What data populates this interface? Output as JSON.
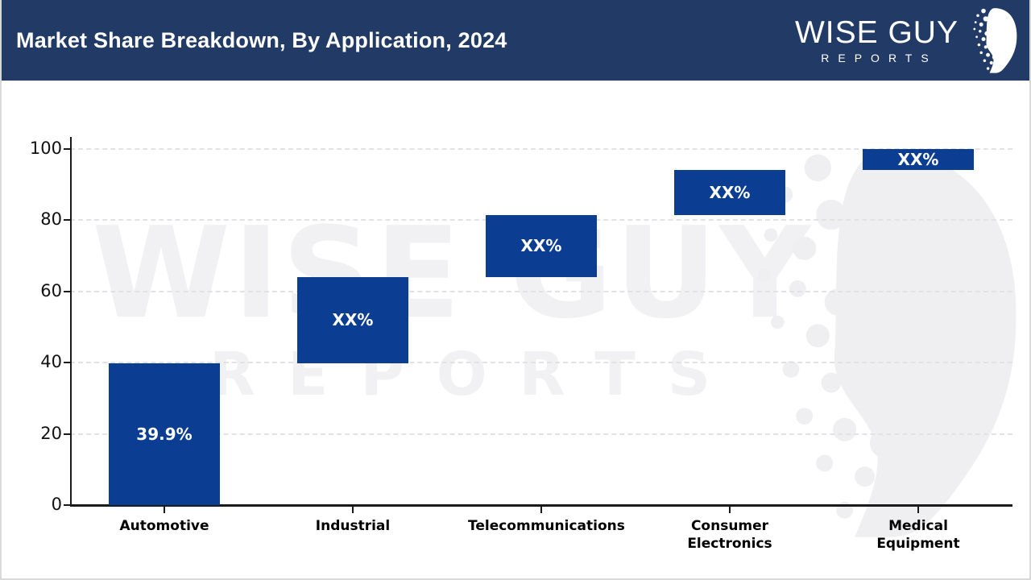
{
  "header": {
    "title": "Market Share Breakdown, By Application, 2024",
    "logo": {
      "line1": "WISE GUY",
      "line2": "REPORTS"
    }
  },
  "watermark": {
    "line1": "WISE GUY",
    "line2": "REPORTS"
  },
  "colors": {
    "header_bg": "#213a66",
    "bar": "#0b3e92",
    "bar_label": "#ffffff",
    "gridline": "#e2e2e5",
    "axis": "#1a1a1a"
  },
  "chart_data": {
    "type": "bar",
    "subtype": "waterfall",
    "title": "Market Share Breakdown, By Application, 2024",
    "categories": [
      "Automotive",
      "Industrial",
      "Telecommunications",
      "Consumer Electronics",
      "Medical Equipment"
    ],
    "segments": [
      {
        "category": "Automotive",
        "start": 0,
        "end": 39.9,
        "label": "39.9%"
      },
      {
        "category": "Industrial",
        "start": 39.9,
        "end": 64.0,
        "label": "XX%"
      },
      {
        "category": "Telecommunications",
        "start": 64.0,
        "end": 81.5,
        "label": "XX%"
      },
      {
        "category": "Consumer Electronics",
        "start": 81.5,
        "end": 94.2,
        "label": "XX%"
      },
      {
        "category": "Medical Equipment",
        "start": 94.2,
        "end": 100.0,
        "label": "XX%"
      }
    ],
    "y_ticks": [
      0,
      20,
      40,
      60,
      80,
      100
    ],
    "ylim": [
      0,
      103.5
    ],
    "xlabel": "",
    "ylabel": "",
    "grid": "horizontal-dashed",
    "legend": "none",
    "bar_color": "#0b3e92",
    "label_color": "#ffffff"
  }
}
